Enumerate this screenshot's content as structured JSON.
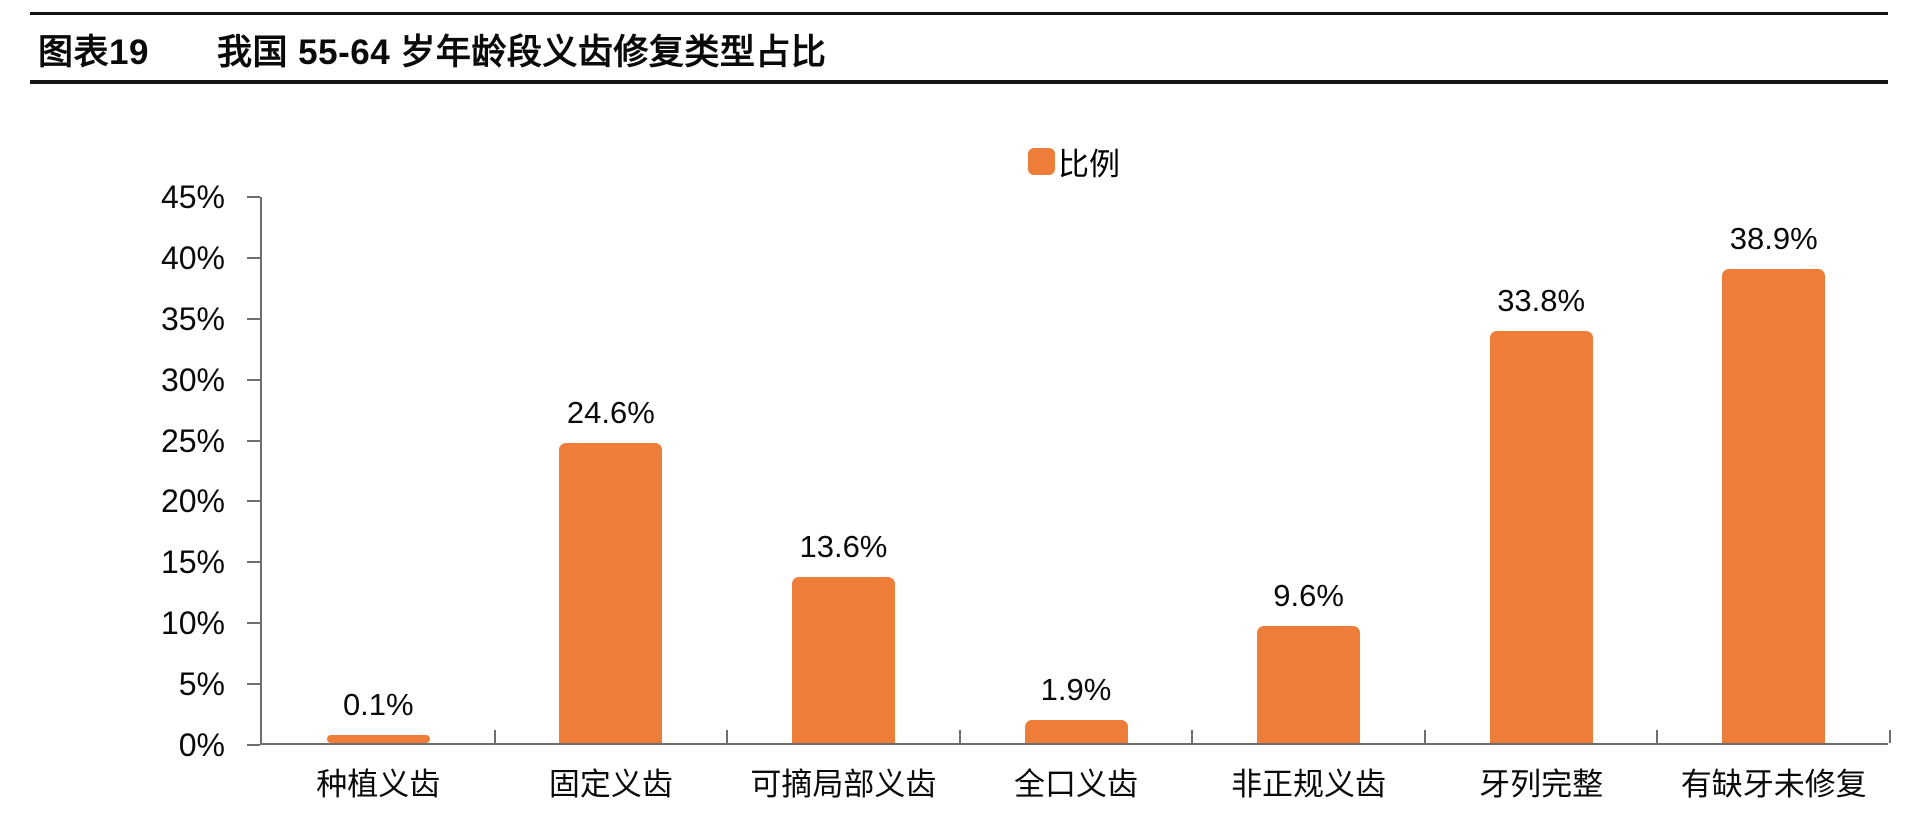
{
  "header": {
    "figure_label": "图表19",
    "title": "我国 55-64 岁年龄段义齿修复类型占比"
  },
  "chart_data": {
    "type": "bar",
    "title": "我国 55-64 岁年龄段义齿修复类型占比",
    "categories": [
      "种植义齿",
      "固定义齿",
      "可摘局部义齿",
      "全口义齿",
      "非正规义齿",
      "牙列完整",
      "有缺牙未修复"
    ],
    "series": [
      {
        "name": "比例",
        "values": [
          0.1,
          24.6,
          13.6,
          1.9,
          9.6,
          33.8,
          38.9
        ]
      }
    ],
    "data_labels": [
      "0.1%",
      "24.6%",
      "13.6%",
      "1.9%",
      "9.6%",
      "33.8%",
      "38.9%"
    ],
    "xlabel": "",
    "ylabel": "",
    "ylim": [
      0,
      45
    ],
    "ytick_step": 5,
    "ytick_labels": [
      "0%",
      "5%",
      "10%",
      "15%",
      "20%",
      "25%",
      "30%",
      "35%",
      "40%",
      "45%"
    ],
    "grid": false,
    "legend": {
      "labels": [
        "比例"
      ],
      "position": "top-center"
    },
    "colors": {
      "bar": "#EF7D3A",
      "axis": "#6e6e6e",
      "text": "#0a0a0a",
      "rule": "#141414"
    }
  }
}
